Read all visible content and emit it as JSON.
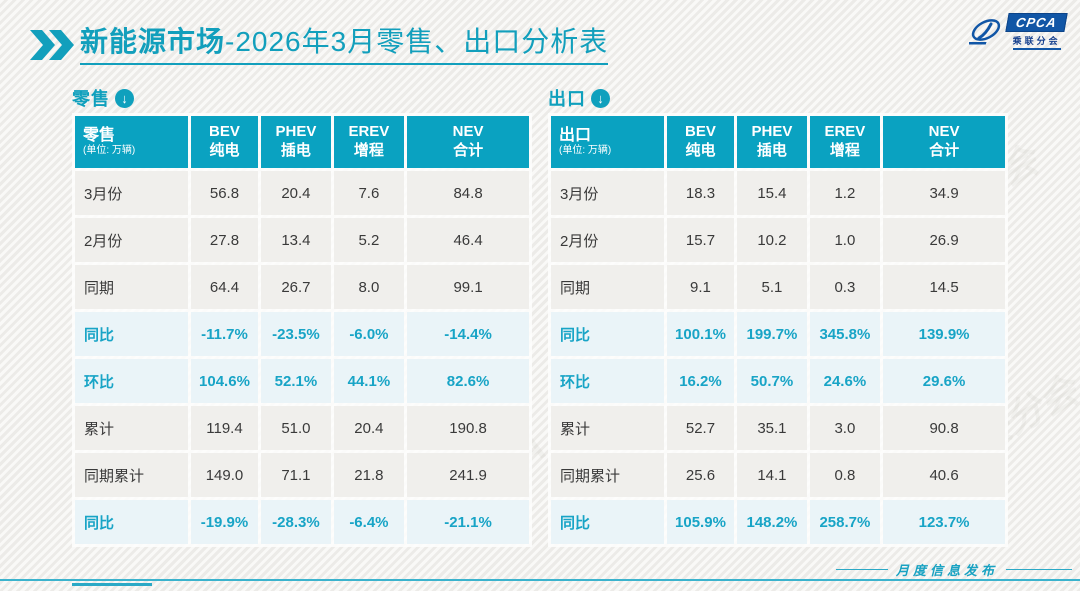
{
  "page": {
    "title_bold": "新能源市场",
    "title_rest": "-2026年3月零售、出口分析表",
    "footer_note": "月度信息发布"
  },
  "logo": {
    "name": "CPCA",
    "cn": "乘联分会"
  },
  "icons": {
    "title_chevrons": "double-chevron-right",
    "section_arrow": "↓"
  },
  "colors": {
    "accent_teal": "#0aa2c1",
    "title_teal": "#129fbc",
    "percent_text_teal": "#18a4c6",
    "percent_row_bg": "#eaf4f8",
    "normal_row_bg": "#f0efec",
    "logo_blue": "#1156a6"
  },
  "watermark_text": "CPCA 乘联分会",
  "chart_data": [
    {
      "type": "table",
      "section_label": "零售",
      "corner_title": "零售",
      "corner_unit": "(单位: 万辆)",
      "columns": [
        {
          "en": "BEV",
          "cn": "纯电"
        },
        {
          "en": "PHEV",
          "cn": "插电"
        },
        {
          "en": "EREV",
          "cn": "增程"
        },
        {
          "en": "NEV",
          "cn": "合计"
        }
      ],
      "rows": [
        {
          "label": "3月份",
          "style": "normal",
          "values": [
            "56.8",
            "20.4",
            "7.6",
            "84.8"
          ]
        },
        {
          "label": "2月份",
          "style": "normal",
          "values": [
            "27.8",
            "13.4",
            "5.2",
            "46.4"
          ]
        },
        {
          "label": "同期",
          "style": "normal",
          "values": [
            "64.4",
            "26.7",
            "8.0",
            "99.1"
          ]
        },
        {
          "label": "同比",
          "style": "pct",
          "values": [
            "-11.7%",
            "-23.5%",
            "-6.0%",
            "-14.4%"
          ]
        },
        {
          "label": "环比",
          "style": "pct",
          "values": [
            "104.6%",
            "52.1%",
            "44.1%",
            "82.6%"
          ]
        },
        {
          "label": "累计",
          "style": "normal",
          "values": [
            "119.4",
            "51.0",
            "20.4",
            "190.8"
          ]
        },
        {
          "label": "同期累计",
          "style": "normal",
          "values": [
            "149.0",
            "71.1",
            "21.8",
            "241.9"
          ]
        },
        {
          "label": "同比",
          "style": "pct",
          "values": [
            "-19.9%",
            "-28.3%",
            "-6.4%",
            "-21.1%"
          ]
        }
      ]
    },
    {
      "type": "table",
      "section_label": "出口",
      "corner_title": "出口",
      "corner_unit": "(单位: 万辆)",
      "columns": [
        {
          "en": "BEV",
          "cn": "纯电"
        },
        {
          "en": "PHEV",
          "cn": "插电"
        },
        {
          "en": "EREV",
          "cn": "增程"
        },
        {
          "en": "NEV",
          "cn": "合计"
        }
      ],
      "rows": [
        {
          "label": "3月份",
          "style": "normal",
          "values": [
            "18.3",
            "15.4",
            "1.2",
            "34.9"
          ]
        },
        {
          "label": "2月份",
          "style": "normal",
          "values": [
            "15.7",
            "10.2",
            "1.0",
            "26.9"
          ]
        },
        {
          "label": "同期",
          "style": "normal",
          "values": [
            "9.1",
            "5.1",
            "0.3",
            "14.5"
          ]
        },
        {
          "label": "同比",
          "style": "pct",
          "values": [
            "100.1%",
            "199.7%",
            "345.8%",
            "139.9%"
          ]
        },
        {
          "label": "环比",
          "style": "pct",
          "values": [
            "16.2%",
            "50.7%",
            "24.6%",
            "29.6%"
          ]
        },
        {
          "label": "累计",
          "style": "normal",
          "values": [
            "52.7",
            "35.1",
            "3.0",
            "90.8"
          ]
        },
        {
          "label": "同期累计",
          "style": "normal",
          "values": [
            "25.6",
            "14.1",
            "0.8",
            "40.6"
          ]
        },
        {
          "label": "同比",
          "style": "pct",
          "values": [
            "105.9%",
            "148.2%",
            "258.7%",
            "123.7%"
          ]
        }
      ]
    }
  ]
}
